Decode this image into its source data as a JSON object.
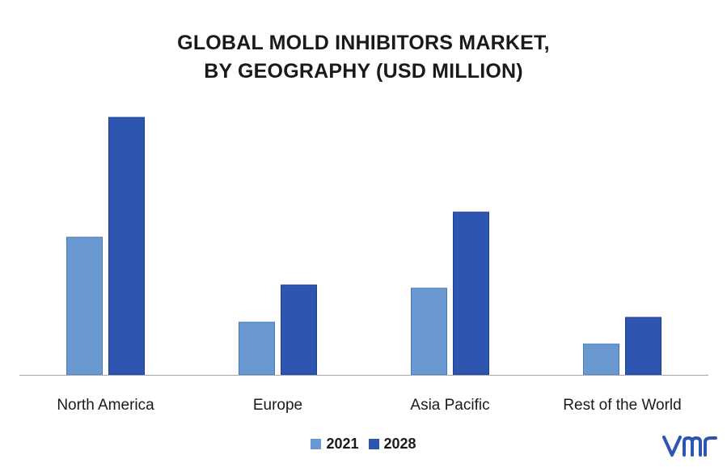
{
  "title_line1": "GLOBAL MOLD INHIBITORS MARKET,",
  "title_line2": "BY GEOGRAPHY (USD MILLION)",
  "colors": {
    "series_2021": "#6a98d0",
    "series_2028": "#2e56b0",
    "axis": "#a6a6a6",
    "logo": "#2e56b0"
  },
  "logo_icon": "vmr-logo",
  "chart_data": {
    "type": "bar",
    "categories": [
      "North America",
      "Europe",
      "Asia Pacific",
      "Rest of the World"
    ],
    "series": [
      {
        "name": "2021",
        "values": [
          170,
          65,
          107,
          38
        ]
      },
      {
        "name": "2028",
        "values": [
          318,
          111,
          201,
          71
        ]
      }
    ],
    "ylim": [
      0,
      340
    ],
    "grid": false,
    "legend": "bottom"
  }
}
